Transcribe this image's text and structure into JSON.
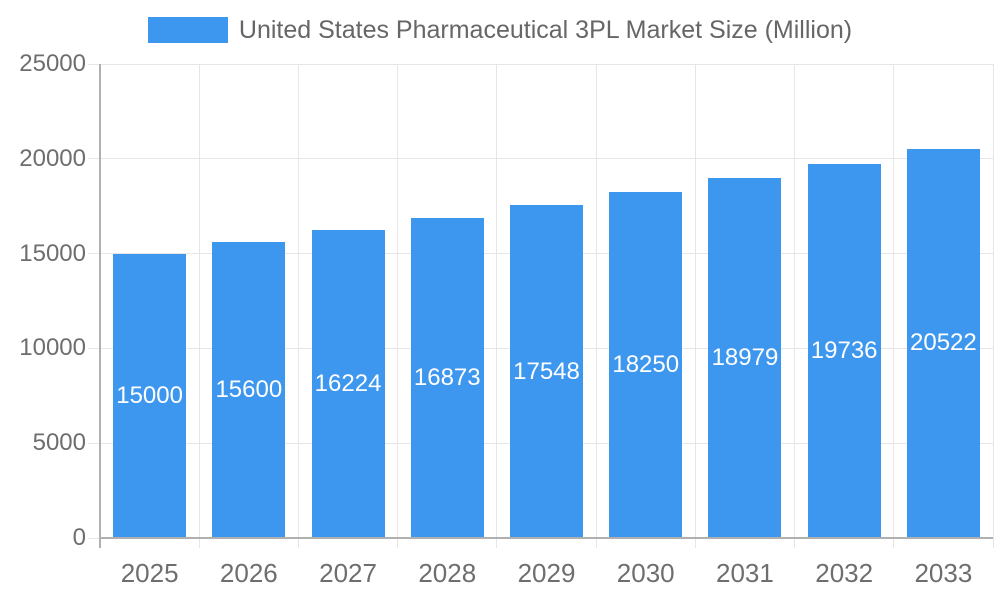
{
  "chart_data": {
    "type": "bar",
    "title": "United States Pharmaceutical 3PL Market Size (Million)",
    "categories": [
      "2025",
      "2026",
      "2027",
      "2028",
      "2029",
      "2030",
      "2031",
      "2032",
      "2033"
    ],
    "values": [
      15000,
      15600,
      16224,
      16873,
      17548,
      18250,
      18979,
      19736,
      20522
    ],
    "series": [
      {
        "name": "United States Pharmaceutical 3PL Market Size (Million)",
        "values": [
          15000,
          15600,
          16224,
          16873,
          17548,
          18250,
          18979,
          19736,
          20522
        ]
      }
    ],
    "xlabel": "",
    "ylabel": "",
    "ylim": [
      0,
      25000
    ],
    "yticks": [
      0,
      5000,
      10000,
      15000,
      20000,
      25000
    ],
    "grid": true,
    "legend_position": "top",
    "value_labels": {
      "show": true,
      "position": "center",
      "color": "#ffffff"
    }
  },
  "legend": {
    "label": "United States Pharmaceutical 3PL Market Size (Million)"
  },
  "colors": {
    "bar": "#3E97EE",
    "legend_swatch": "#3E97EE",
    "grid": "#e6e6e6",
    "axis": "#b0b0b0",
    "axis_label_text": "#6e6e6e",
    "legend_text": "#666666",
    "bar_value_text": "#ffffff",
    "background": "#ffffff"
  }
}
